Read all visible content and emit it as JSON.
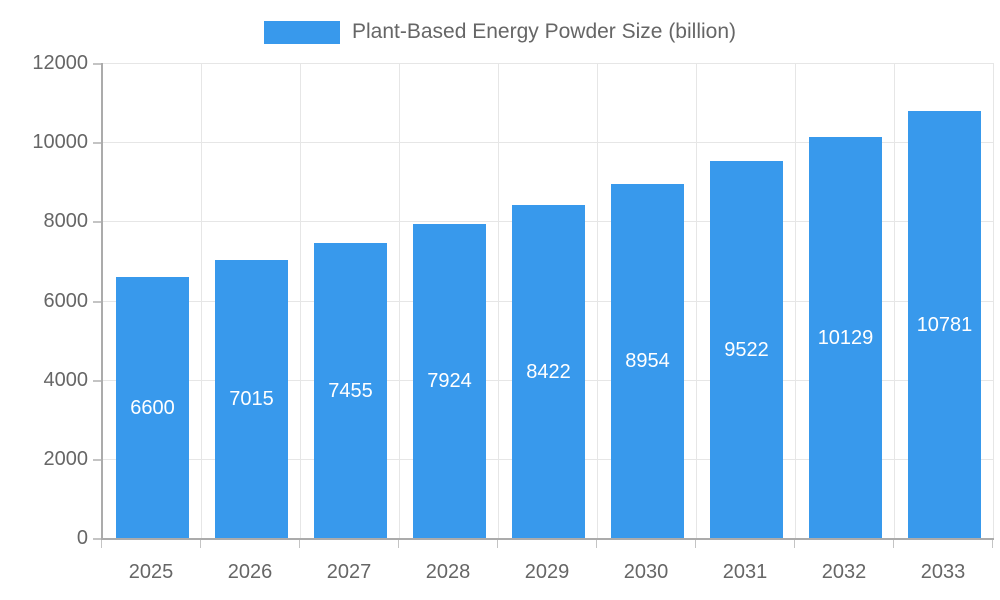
{
  "chart_data": {
    "type": "bar",
    "legend": "Plant-Based Energy Powder Size (billion)",
    "categories": [
      "2025",
      "2026",
      "2027",
      "2028",
      "2029",
      "2030",
      "2031",
      "2032",
      "2033"
    ],
    "values": [
      6600,
      7015,
      7455,
      7924,
      8422,
      8954,
      9522,
      10129,
      10781
    ],
    "value_labels": [
      "6600",
      "7015",
      "7455",
      "7924",
      "8422",
      "8954",
      "9522",
      "10129",
      "10781"
    ],
    "ylim": [
      0,
      12000
    ],
    "yticks": [
      0,
      2000,
      4000,
      6000,
      8000,
      10000,
      12000
    ],
    "ytick_labels": [
      "0",
      "2000",
      "4000",
      "6000",
      "8000",
      "10000",
      "12000"
    ],
    "grid": true,
    "legend_position": "top",
    "colors": {
      "bar": "#3899EC",
      "axis": "#ababab",
      "gridline": "#e6e6e6",
      "tick": "#c4c4c4",
      "tick_label": "#666666",
      "legend_text": "#666666",
      "bar_value_text": "#ffffff",
      "background": "#ffffff"
    }
  }
}
